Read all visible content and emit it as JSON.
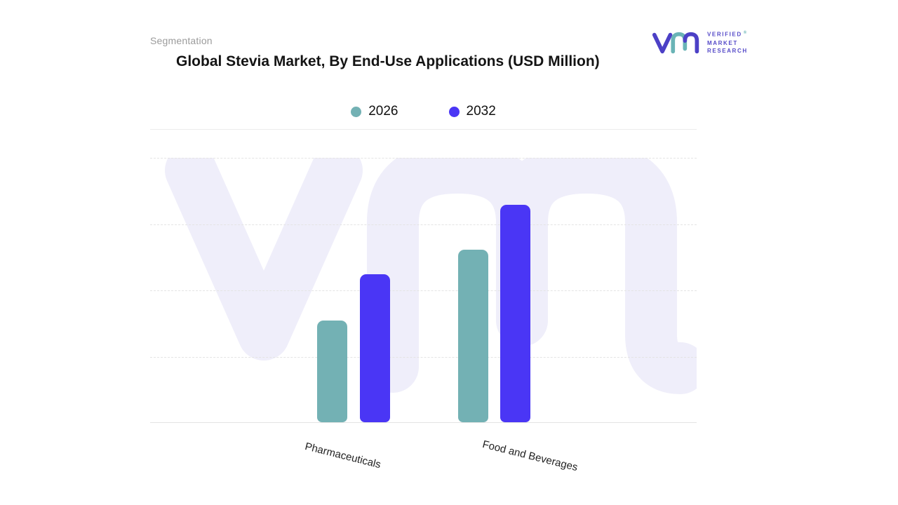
{
  "header": {
    "eyebrow": "Segmentation"
  },
  "logo": {
    "lines": [
      "VERIFIED",
      "MARKET",
      "RESEARCH"
    ],
    "registered": "®",
    "brand_purple": "#5449c8",
    "brand_teal": "#6ab4b6"
  },
  "chart_data": {
    "type": "bar",
    "title": "Global Stevia Market, By End-Use Applications (USD Million)",
    "categories": [
      "Pharmaceuticals",
      "Food and Beverages"
    ],
    "series": [
      {
        "name": "2026",
        "color": "#73b1b4",
        "values": [
          153,
          260
        ]
      },
      {
        "name": "2032",
        "color": "#4a36f5",
        "values": [
          223,
          328
        ]
      }
    ],
    "xlabel": "",
    "ylabel": "",
    "ylim": [
      0,
      400
    ],
    "grid": "horizontal-dashed",
    "y_tick_labels_visible": false,
    "legend_position": "top-center",
    "watermark_color": "#efeefa"
  }
}
